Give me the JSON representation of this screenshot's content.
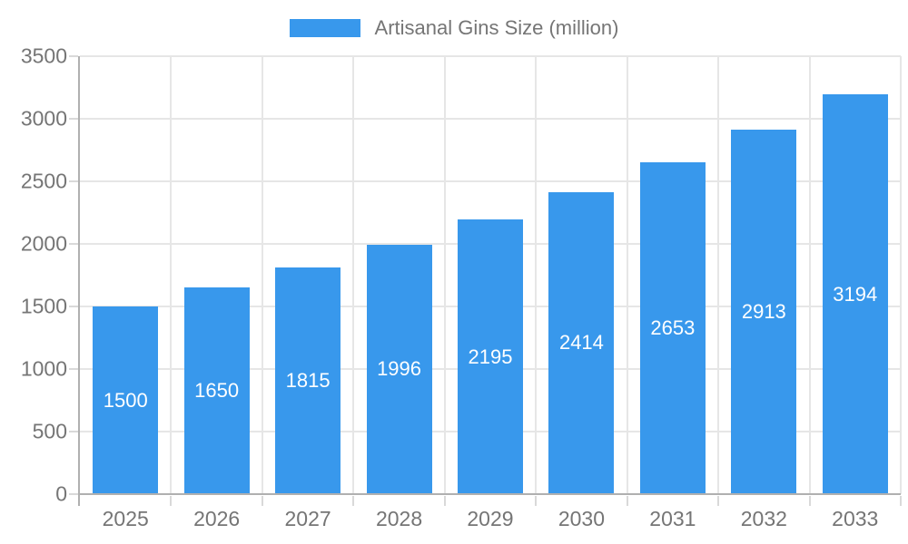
{
  "legend": {
    "label": "Artisanal Gins Size (million)"
  },
  "chart_data": {
    "type": "bar",
    "title": "Artisanal Gins Size (million)",
    "series_name": "Artisanal Gins Size (million)",
    "categories": [
      "2025",
      "2026",
      "2027",
      "2028",
      "2029",
      "2030",
      "2031",
      "2032",
      "2033"
    ],
    "values": [
      1500,
      1650,
      1815,
      1996,
      2195,
      2414,
      2653,
      2913,
      3194
    ],
    "xlabel": "",
    "ylabel": "",
    "ylim": [
      0,
      3500
    ],
    "yticks": [
      0,
      500,
      1000,
      1500,
      2000,
      2500,
      3000,
      3500
    ],
    "ytick_interval": 500,
    "grid": true,
    "legend_position": "top",
    "value_labels": "inside-center"
  },
  "colors": {
    "bar": "#3898ec",
    "grid": "#e6e6e6",
    "axis": "#b0b0b0",
    "tick": "#d9d9d9",
    "text": "#757575",
    "bar_label": "#ffffff",
    "background": "#ffffff"
  }
}
